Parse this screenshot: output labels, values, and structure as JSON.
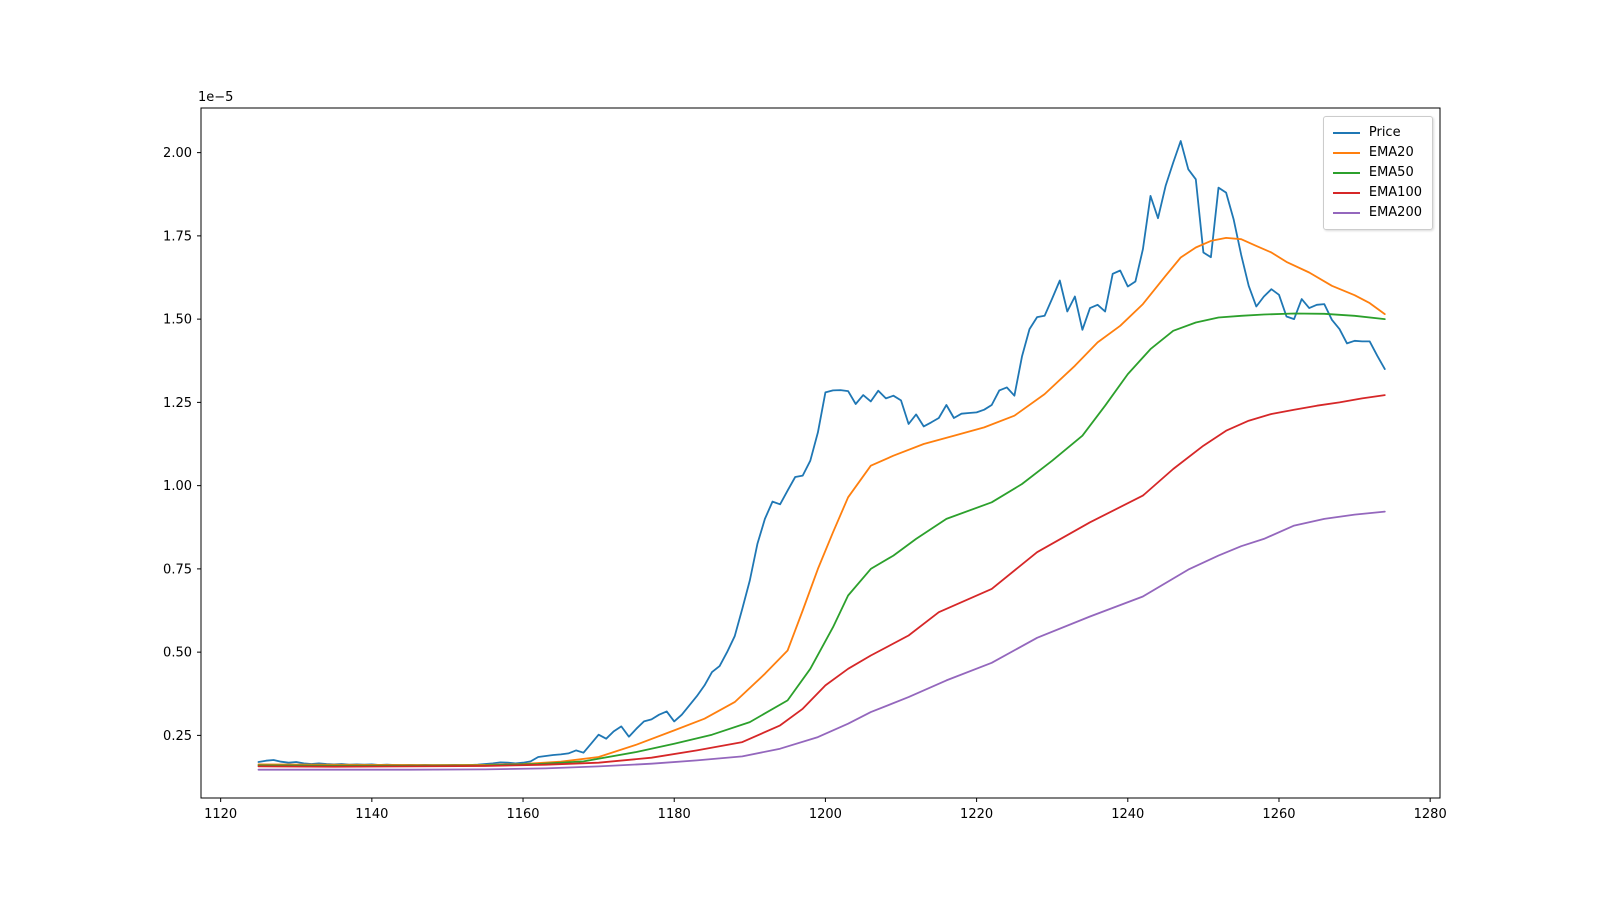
{
  "figure": {
    "background": "#ffffff"
  },
  "legend": {
    "position": "upper right",
    "entries": [
      "Price",
      "EMA20",
      "EMA50",
      "EMA100",
      "EMA200"
    ]
  },
  "chart_data": {
    "type": "line",
    "title": "",
    "xlabel": "",
    "ylabel": "",
    "y_offset_text": "1e−5",
    "y_unit_multiplier": "1e-5",
    "xlim": [
      1117.4,
      1281.3
    ],
    "ylim": [
      0.062,
      2.134
    ],
    "xticks": [
      1120,
      1140,
      1160,
      1180,
      1200,
      1220,
      1240,
      1260,
      1280
    ],
    "yticks": [
      0.25,
      0.5,
      0.75,
      1.0,
      1.25,
      1.5,
      1.75,
      2.0
    ],
    "grid": false,
    "legend_position": "upper right",
    "series": [
      {
        "name": "Price",
        "color": "#1f77b4",
        "x_start": 1125,
        "x_step": 1,
        "y": [
          0.17,
          0.174,
          0.176,
          0.171,
          0.168,
          0.17,
          0.166,
          0.164,
          0.166,
          0.164,
          0.163,
          0.164,
          0.162,
          0.163,
          0.162,
          0.163,
          0.161,
          0.162,
          0.161,
          0.16,
          0.161,
          0.16,
          0.161,
          0.16,
          0.159,
          0.16,
          0.161,
          0.16,
          0.161,
          0.162,
          0.164,
          0.166,
          0.169,
          0.168,
          0.166,
          0.168,
          0.172,
          0.185,
          0.188,
          0.191,
          0.193,
          0.196,
          0.205,
          0.198,
          0.225,
          0.252,
          0.24,
          0.262,
          0.277,
          0.246,
          0.27,
          0.292,
          0.298,
          0.312,
          0.322,
          0.292,
          0.312,
          0.34,
          0.368,
          0.4,
          0.44,
          0.458,
          0.5,
          0.548,
          0.63,
          0.715,
          0.825,
          0.9,
          0.952,
          0.944,
          0.985,
          1.026,
          1.03,
          1.075,
          1.16,
          1.28,
          1.286,
          1.287,
          1.284,
          1.245,
          1.272,
          1.253,
          1.285,
          1.262,
          1.27,
          1.256,
          1.185,
          1.214,
          1.178,
          1.19,
          1.203,
          1.242,
          1.203,
          1.216,
          1.218,
          1.22,
          1.228,
          1.242,
          1.286,
          1.295,
          1.27,
          1.388,
          1.47,
          1.506,
          1.51,
          1.562,
          1.616,
          1.523,
          1.568,
          1.468,
          1.533,
          1.543,
          1.523,
          1.636,
          1.646,
          1.598,
          1.613,
          1.71,
          1.87,
          1.803,
          1.9,
          1.97,
          2.035,
          1.95,
          1.92,
          1.7,
          1.686,
          1.895,
          1.88,
          1.8,
          1.693,
          1.6,
          1.538,
          1.568,
          1.59,
          1.573,
          1.508,
          1.5,
          1.56,
          1.533,
          1.543,
          1.545,
          1.498,
          1.47,
          1.427,
          1.435,
          1.433,
          1.433,
          1.39,
          1.35
        ]
      },
      {
        "name": "EMA20",
        "color": "#ff7f0e",
        "points": [
          [
            1125,
            0.163
          ],
          [
            1132,
            0.162
          ],
          [
            1140,
            0.1615
          ],
          [
            1148,
            0.161
          ],
          [
            1155,
            0.1615
          ],
          [
            1160,
            0.164
          ],
          [
            1165,
            0.171
          ],
          [
            1170,
            0.185
          ],
          [
            1175,
            0.222
          ],
          [
            1180,
            0.265
          ],
          [
            1184,
            0.3
          ],
          [
            1188,
            0.35
          ],
          [
            1192,
            0.435
          ],
          [
            1195,
            0.505
          ],
          [
            1197,
            0.625
          ],
          [
            1199,
            0.75
          ],
          [
            1201,
            0.86
          ],
          [
            1203,
            0.965
          ],
          [
            1206,
            1.06
          ],
          [
            1209,
            1.09
          ],
          [
            1213,
            1.125
          ],
          [
            1217,
            1.15
          ],
          [
            1221,
            1.175
          ],
          [
            1225,
            1.21
          ],
          [
            1229,
            1.275
          ],
          [
            1233,
            1.36
          ],
          [
            1236,
            1.43
          ],
          [
            1239,
            1.48
          ],
          [
            1242,
            1.545
          ],
          [
            1245,
            1.63
          ],
          [
            1247,
            1.685
          ],
          [
            1249,
            1.715
          ],
          [
            1251,
            1.735
          ],
          [
            1253,
            1.744
          ],
          [
            1255,
            1.74
          ],
          [
            1257,
            1.72
          ],
          [
            1259,
            1.7
          ],
          [
            1261,
            1.672
          ],
          [
            1264,
            1.64
          ],
          [
            1267,
            1.6
          ],
          [
            1270,
            1.572
          ],
          [
            1272,
            1.548
          ],
          [
            1274,
            1.515
          ]
        ]
      },
      {
        "name": "EMA50",
        "color": "#2ca02c",
        "points": [
          [
            1125,
            0.16
          ],
          [
            1135,
            0.159
          ],
          [
            1145,
            0.159
          ],
          [
            1155,
            0.16
          ],
          [
            1162,
            0.164
          ],
          [
            1168,
            0.172
          ],
          [
            1175,
            0.2
          ],
          [
            1180,
            0.225
          ],
          [
            1185,
            0.252
          ],
          [
            1190,
            0.29
          ],
          [
            1195,
            0.355
          ],
          [
            1198,
            0.45
          ],
          [
            1201,
            0.575
          ],
          [
            1203,
            0.67
          ],
          [
            1206,
            0.75
          ],
          [
            1209,
            0.79
          ],
          [
            1212,
            0.84
          ],
          [
            1216,
            0.9
          ],
          [
            1222,
            0.95
          ],
          [
            1226,
            1.005
          ],
          [
            1230,
            1.075
          ],
          [
            1234,
            1.15
          ],
          [
            1237,
            1.24
          ],
          [
            1240,
            1.335
          ],
          [
            1243,
            1.41
          ],
          [
            1246,
            1.465
          ],
          [
            1249,
            1.49
          ],
          [
            1252,
            1.505
          ],
          [
            1255,
            1.51
          ],
          [
            1258,
            1.514
          ],
          [
            1262,
            1.517
          ],
          [
            1266,
            1.516
          ],
          [
            1270,
            1.51
          ],
          [
            1274,
            1.5
          ]
        ]
      },
      {
        "name": "EMA100",
        "color": "#d62728",
        "points": [
          [
            1125,
            0.157
          ],
          [
            1135,
            0.156
          ],
          [
            1145,
            0.157
          ],
          [
            1155,
            0.158
          ],
          [
            1163,
            0.162
          ],
          [
            1170,
            0.168
          ],
          [
            1177,
            0.183
          ],
          [
            1183,
            0.205
          ],
          [
            1189,
            0.23
          ],
          [
            1194,
            0.28
          ],
          [
            1197,
            0.33
          ],
          [
            1200,
            0.4
          ],
          [
            1203,
            0.45
          ],
          [
            1206,
            0.49
          ],
          [
            1211,
            0.55
          ],
          [
            1215,
            0.62
          ],
          [
            1222,
            0.69
          ],
          [
            1228,
            0.8
          ],
          [
            1235,
            0.89
          ],
          [
            1242,
            0.97
          ],
          [
            1246,
            1.05
          ],
          [
            1250,
            1.12
          ],
          [
            1253,
            1.165
          ],
          [
            1256,
            1.195
          ],
          [
            1259,
            1.215
          ],
          [
            1262,
            1.228
          ],
          [
            1265,
            1.24
          ],
          [
            1268,
            1.25
          ],
          [
            1271,
            1.262
          ],
          [
            1274,
            1.272
          ]
        ]
      },
      {
        "name": "EMA200",
        "color": "#9467bd",
        "points": [
          [
            1125,
            0.147
          ],
          [
            1135,
            0.147
          ],
          [
            1145,
            0.147
          ],
          [
            1155,
            0.148
          ],
          [
            1163,
            0.151
          ],
          [
            1170,
            0.157
          ],
          [
            1177,
            0.165
          ],
          [
            1183,
            0.175
          ],
          [
            1189,
            0.187
          ],
          [
            1194,
            0.21
          ],
          [
            1199,
            0.245
          ],
          [
            1203,
            0.285
          ],
          [
            1206,
            0.32
          ],
          [
            1211,
            0.365
          ],
          [
            1216,
            0.415
          ],
          [
            1222,
            0.468
          ],
          [
            1228,
            0.543
          ],
          [
            1235,
            0.607
          ],
          [
            1242,
            0.667
          ],
          [
            1248,
            0.748
          ],
          [
            1252,
            0.79
          ],
          [
            1255,
            0.818
          ],
          [
            1258,
            0.84
          ],
          [
            1262,
            0.88
          ],
          [
            1266,
            0.9
          ],
          [
            1270,
            0.913
          ],
          [
            1274,
            0.922
          ]
        ]
      }
    ]
  }
}
